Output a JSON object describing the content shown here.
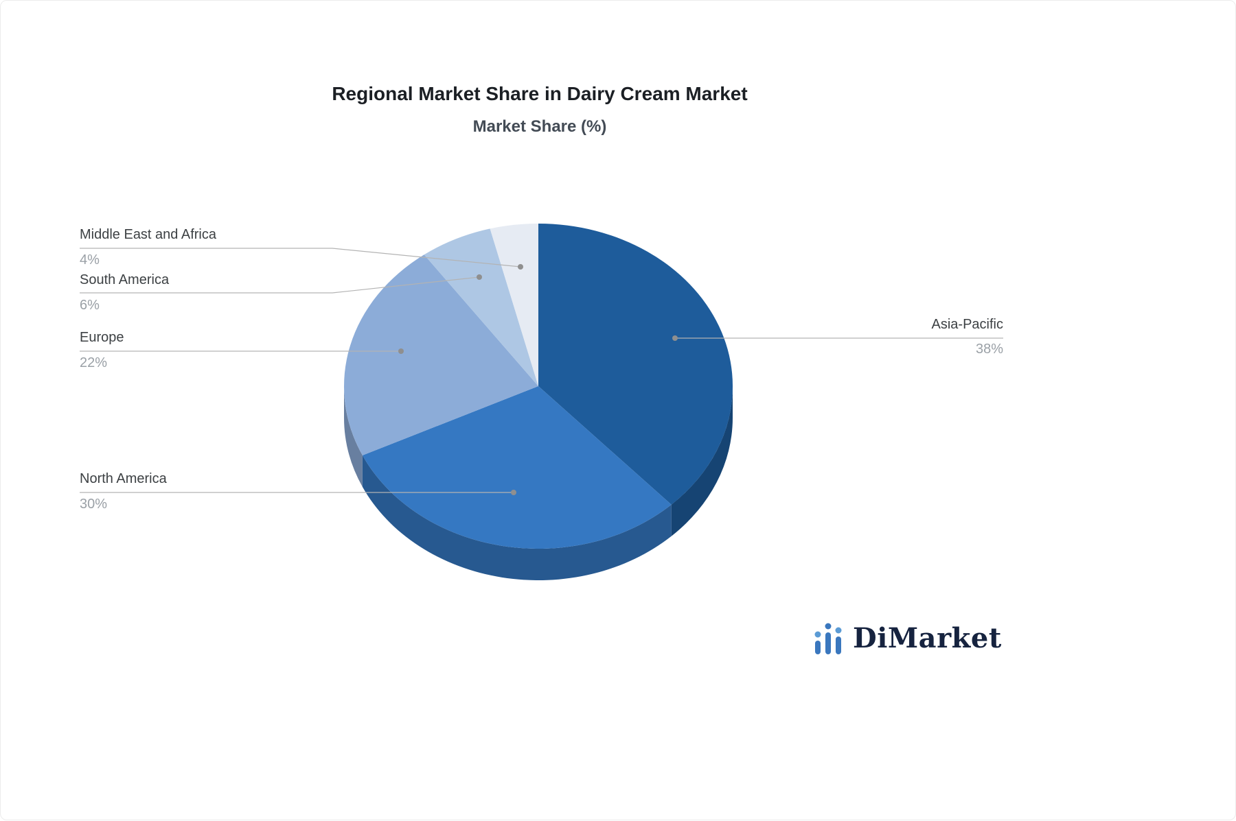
{
  "header": {
    "title": "Regional Market Share in Dairy Cream Market",
    "subtitle": "Market Share (%)"
  },
  "chart_data": {
    "type": "pie",
    "title": "Regional Market Share in Dairy Cream Market",
    "subtitle": "Market Share (%)",
    "labels": [
      "Asia-Pacific",
      "North America",
      "Europe",
      "South America",
      "Middle East and Africa"
    ],
    "values": [
      38,
      30,
      22,
      6,
      4
    ],
    "value_labels": [
      "38%",
      "30%",
      "22%",
      "6%",
      "4%"
    ],
    "colors": [
      "#1E5C9B",
      "#3578C2",
      "#8CACD8",
      "#AEC7E4",
      "#E6EBF3"
    ],
    "effect": "3d",
    "start_angle_deg": -90,
    "direction": "clockwise",
    "legend_position": "callout-labels",
    "leader_line_color": "#b3b3b3",
    "leader_dot_color": "#8f8f8f"
  },
  "branding": {
    "logo_text": "DiMarket",
    "logo_icon": "bar-chart-dots-icon",
    "logo_color": "#16233f",
    "icon_color": "#3a77be"
  }
}
